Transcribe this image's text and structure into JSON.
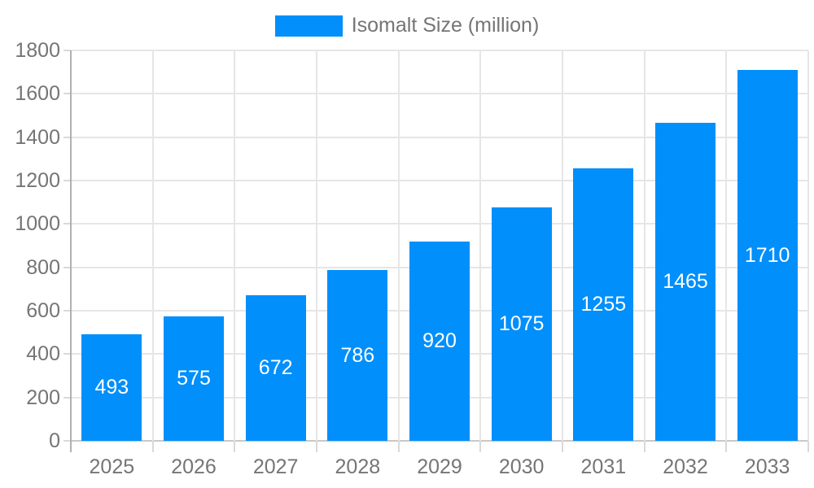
{
  "chart_data": {
    "type": "bar",
    "title": "",
    "series_name": "Isomalt Size (million)",
    "categories": [
      "2025",
      "2026",
      "2027",
      "2028",
      "2029",
      "2030",
      "2031",
      "2032",
      "2033"
    ],
    "values": [
      493,
      575,
      672,
      786,
      920,
      1075,
      1255,
      1465,
      1710
    ],
    "xlabel": "",
    "ylabel": "",
    "ylim": [
      0,
      1800
    ],
    "ytick_step": 200,
    "y_tick_labels": [
      "0",
      "200",
      "400",
      "600",
      "800",
      "1000",
      "1200",
      "1400",
      "1600",
      "1800"
    ],
    "grid": "both",
    "legend_position": "top-center",
    "data_labels": "inside-center-white",
    "colors": {
      "bar": "#008FFB",
      "axis_label": "#757575",
      "value_label": "#ffffff",
      "gridline": "#e6e6e6",
      "outer_tick": "#d9d9d9",
      "y_axis_line": "#b0b0b0",
      "zero_line": "#c9c9c9"
    }
  }
}
